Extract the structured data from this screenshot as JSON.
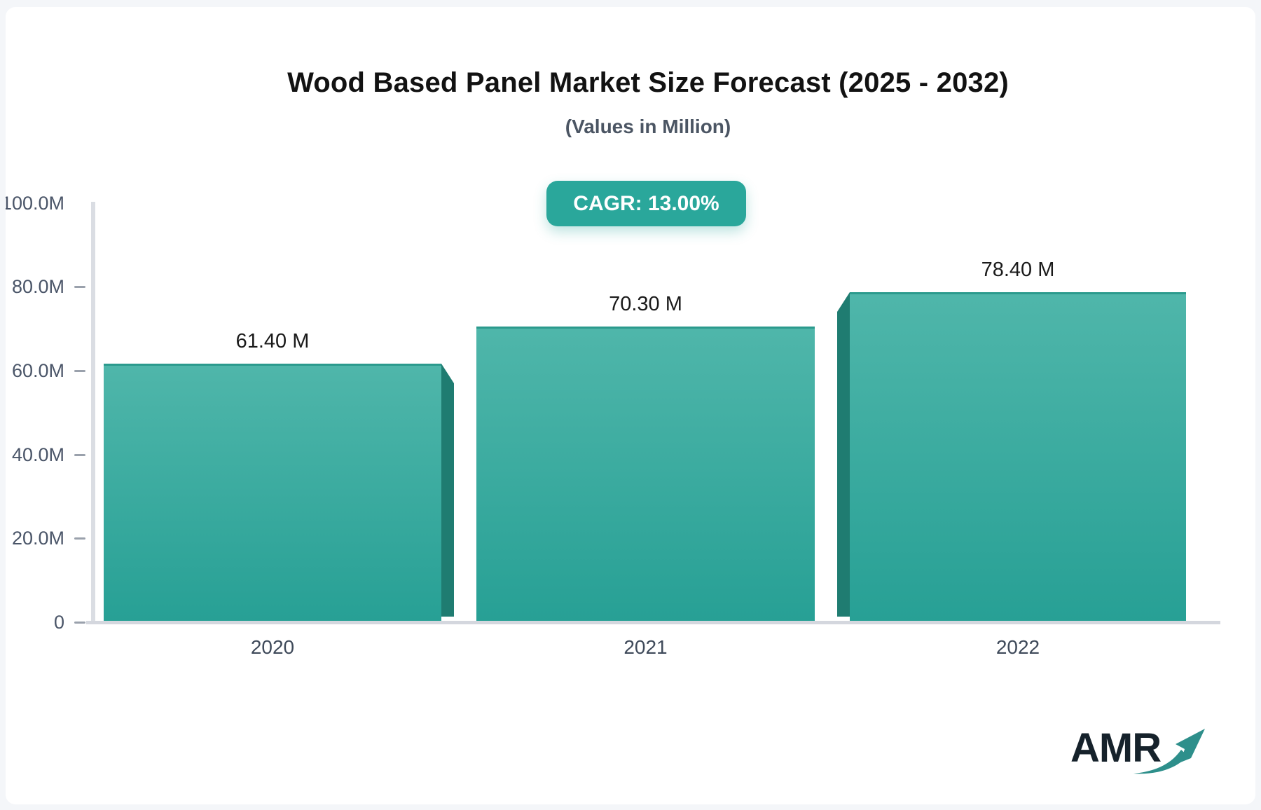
{
  "page": {
    "background": "#f4f6f9",
    "card_background": "#ffffff"
  },
  "header": {
    "title": "Wood Based Panel Market Size Forecast (2025 - 2032)",
    "subtitle": "(Values in Million)"
  },
  "badge": {
    "label": "CAGR: 13.00%",
    "background": "#2aa79b",
    "text_color": "#ffffff"
  },
  "chart_data": {
    "type": "bar",
    "title": "Wood Based Panel Market Size Forecast (2025 - 2032)",
    "subtitle": "(Values in Million)",
    "unit": "Million",
    "cagr_percent": "13.00%",
    "categories": [
      "2020",
      "2021",
      "2022"
    ],
    "values": [
      61.4,
      70.3,
      78.4
    ],
    "value_labels": [
      "61.40 M",
      "70.30 M",
      "78.40 M"
    ],
    "yticks": [
      "100.0M",
      "80.0M",
      "60.0M",
      "40.0M",
      "20.0M",
      "0"
    ],
    "ylim": [
      0,
      100
    ],
    "grid": false,
    "legend": false,
    "bar_gradient_top": "#4fb6aa",
    "bar_gradient_bottom": "#27a095",
    "bar_side_color": "#1f7c71",
    "axis_color": "#d4d7de",
    "tick_label_color": "#4a5568"
  },
  "logo": {
    "text": "AMR",
    "text_color": "#16222b",
    "arrow_color": "#2e8f8b"
  }
}
